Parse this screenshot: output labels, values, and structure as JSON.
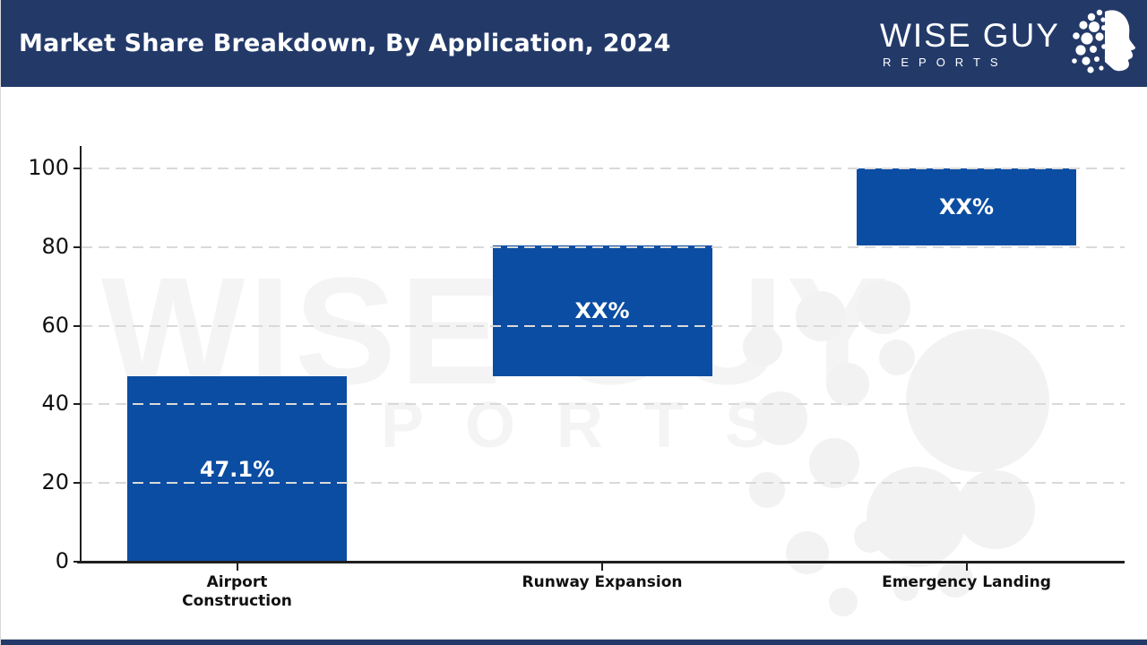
{
  "header": {
    "title": "Market Share Breakdown, By Application, 2024",
    "background_color": "#233a69",
    "logo": {
      "line1": "WISE GUY",
      "line2": "REPORTS"
    }
  },
  "watermark": {
    "line1": "WISE GUY",
    "line2": "EPORTS"
  },
  "chart_data": {
    "type": "bar",
    "subtype": "waterfall",
    "title": "Market Share Breakdown, By Application, 2024",
    "categories": [
      "Airport Construction",
      "Runway Expansion",
      "Emergency Landing"
    ],
    "category_lines": [
      [
        "Airport",
        "Construction"
      ],
      [
        "Runway Expansion"
      ],
      [
        "Emergency Landing"
      ]
    ],
    "segments": [
      {
        "category": "Airport Construction",
        "start": 0,
        "end": 47.1,
        "label": "47.1%"
      },
      {
        "category": "Runway Expansion",
        "start": 47.1,
        "end": 80.3,
        "label": "XX%"
      },
      {
        "category": "Emergency Landing",
        "start": 80.3,
        "end": 100,
        "label": "XX%"
      }
    ],
    "xlabel": "",
    "ylabel": "",
    "yticks": [
      0,
      20,
      40,
      60,
      80,
      100
    ],
    "ylim": [
      0,
      105.7
    ],
    "grid": {
      "axis": "y",
      "style": "dashed",
      "color": "#d9d9d9"
    },
    "bar_color": "#0b4da2",
    "bar_label_color": "#ffffff",
    "axis_color": "#1f1f1f",
    "legend": "none"
  }
}
